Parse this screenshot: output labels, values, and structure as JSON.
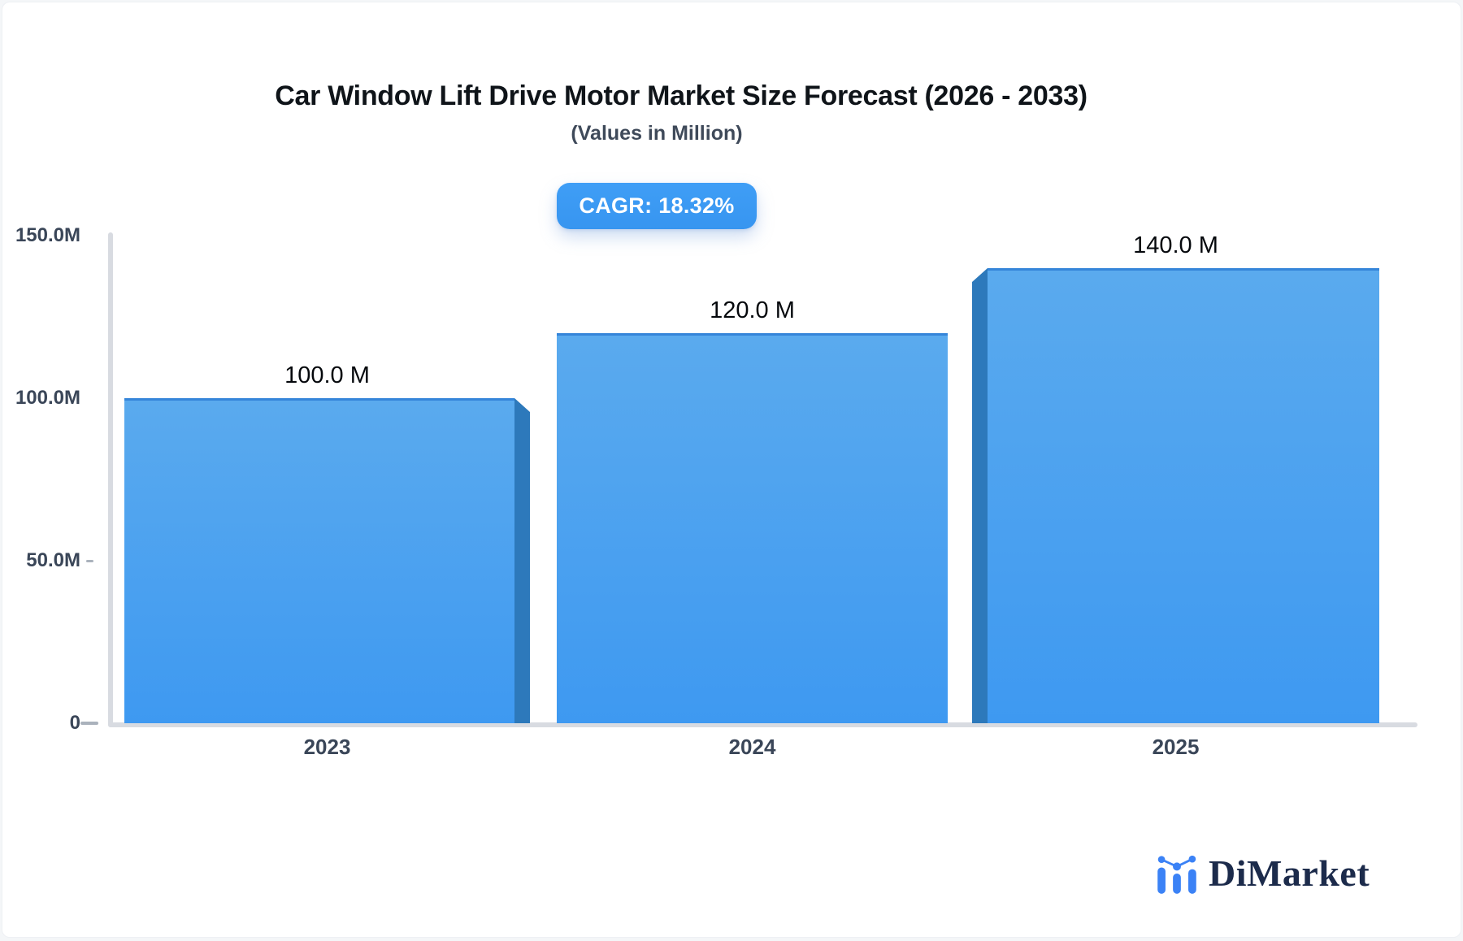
{
  "title": "Car Window Lift Drive Motor Market Size Forecast (2026 - 2033)",
  "subtitle": "(Values in Million)",
  "badge": {
    "label": "CAGR: 18.32%"
  },
  "chart_data": {
    "type": "bar",
    "categories": [
      "2023",
      "2024",
      "2025"
    ],
    "values": [
      100.0,
      120.0,
      140.0
    ],
    "value_labels": [
      "100.0 M",
      "120.0 M",
      "140.0 M"
    ],
    "unit": "Million",
    "ylim": [
      0,
      150
    ],
    "y_tick_values": [
      150,
      100,
      50,
      0
    ],
    "y_tick_labels": [
      "150.0M",
      "100.0M",
      "50.0M",
      "0"
    ],
    "grid": false,
    "legend": false,
    "bar_style": "pseudo-3d"
  },
  "logo": {
    "text": "DiMarket",
    "icon": "bar-line-chart-icon"
  },
  "colors": {
    "bar_top": "#5aaaee",
    "bar_bottom": "#3e99f1",
    "bar_top_border": "#3585d9",
    "bar_side": "#2d79bb",
    "badge_bg": "#3f9ef6",
    "axis_line": "#d8dbe1",
    "tick_text": "#3a4658",
    "value_text": "#05080c",
    "title_text": "#0f1419",
    "subtitle_text": "#3f4a5a",
    "logo_navy": "#1c2b4b",
    "logo_blue": "#3b82f6"
  }
}
